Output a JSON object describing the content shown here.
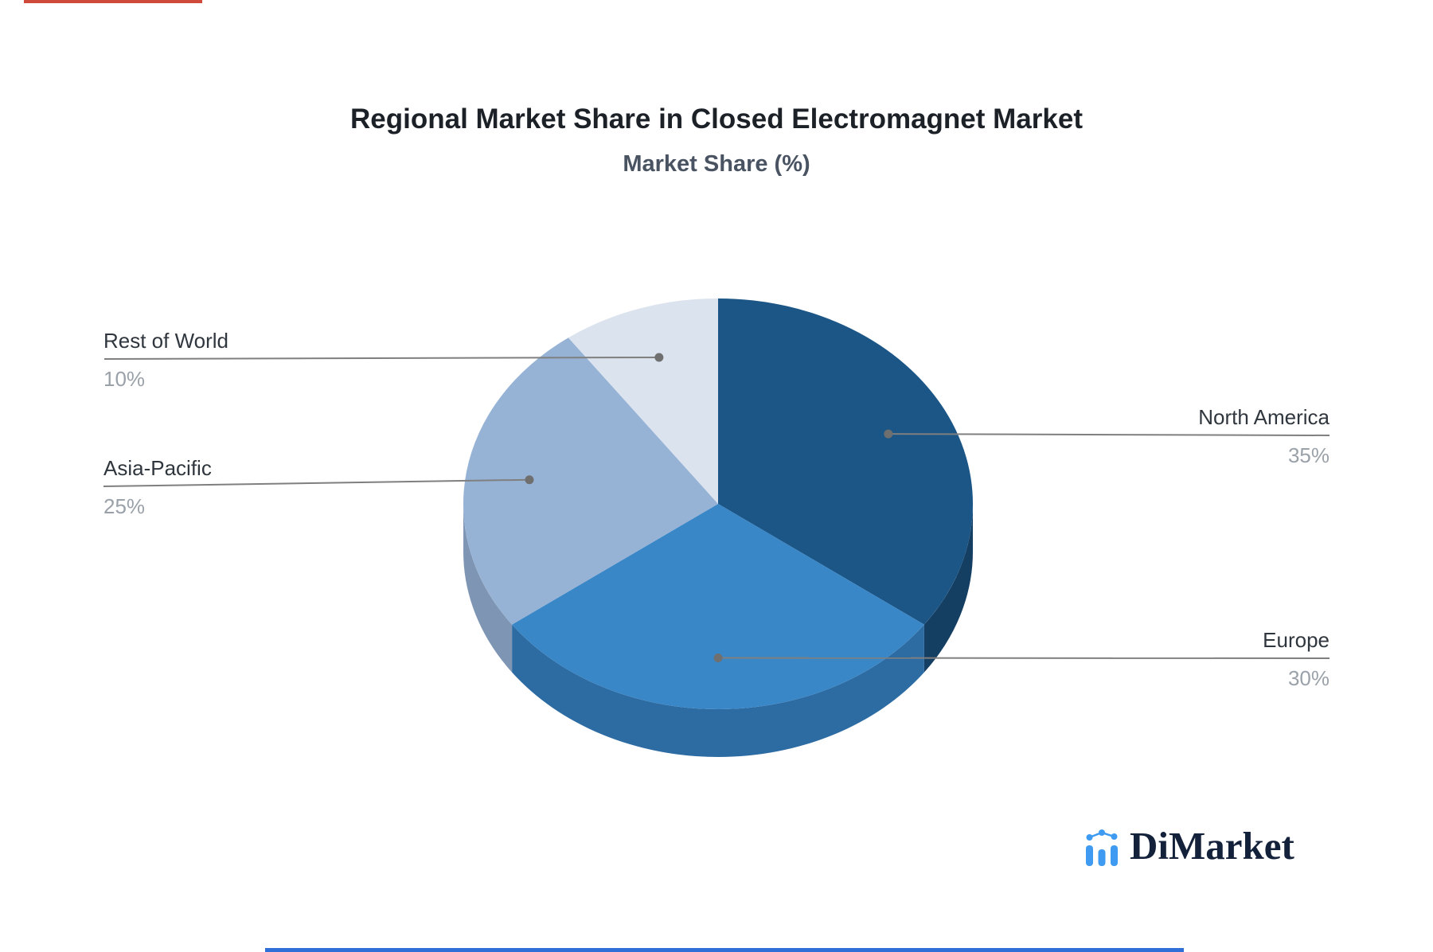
{
  "header": {
    "title": "Regional Market Share in Closed Electromagnet Market",
    "subtitle": "Market Share (%)"
  },
  "chart_data": {
    "type": "pie",
    "style": "3d",
    "title": "Regional Market Share in Closed Electromagnet Market",
    "subtitle": "Market Share (%)",
    "unit": "%",
    "total": 100,
    "start_angle_deg": 90,
    "direction": "clockwise",
    "legend_position": "callout-labels",
    "slices": [
      {
        "label": "North America",
        "value": 35,
        "display": "35%",
        "color": "#1b5687",
        "side_color": "#153e63",
        "callout_side": "right"
      },
      {
        "label": "Europe",
        "value": 30,
        "display": "30%",
        "color": "#3a87c8",
        "side_color": "#2d6ba3",
        "callout_side": "right"
      },
      {
        "label": "Asia-Pacific",
        "value": 25,
        "display": "25%",
        "color": "#96b3d6",
        "side_color": "#7e96b4",
        "callout_side": "left"
      },
      {
        "label": "Rest of World",
        "value": 10,
        "display": "10%",
        "color": "#dbe3ee",
        "side_color": "#c3cedd",
        "callout_side": "left"
      }
    ]
  },
  "branding": {
    "logo_text": "DiMarket"
  },
  "colors": {
    "background": "#ffffff",
    "title": "#1c2128",
    "subtitle": "#495362",
    "label": "#30363d",
    "value": "#9ba1a9",
    "leader": "#7f7f7f",
    "dot": "#6f6f6f",
    "logo_text": "#14213a",
    "logo_icon": "#3f9bf2",
    "strip_top": "#cf4a3b",
    "strip_bottom": "#2e6fd8"
  }
}
